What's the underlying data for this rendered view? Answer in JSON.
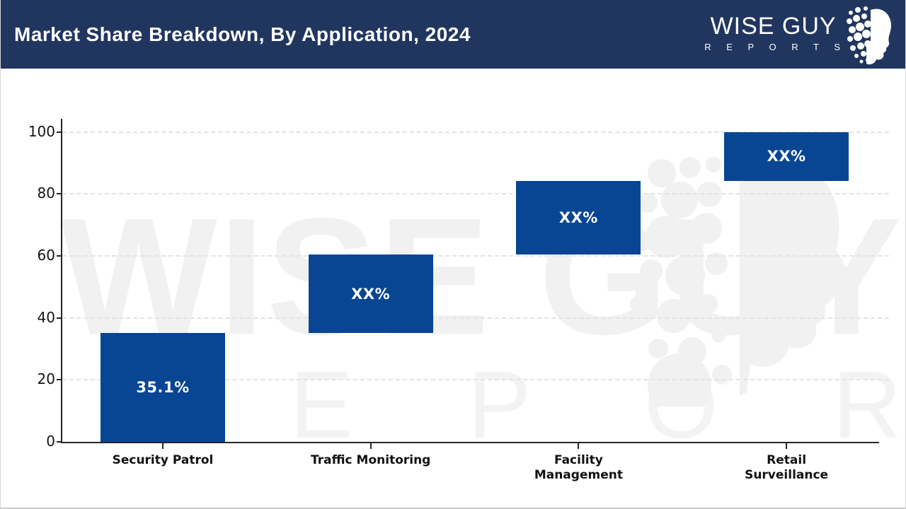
{
  "header": {
    "title": "Market Share Breakdown, By Application, 2024",
    "logo": {
      "line1": "WISE GUY",
      "line2": "R E P O R T S"
    }
  },
  "watermark": {
    "line1": "WISE GUY",
    "line2": "R E P O R T S"
  },
  "chart_data": {
    "type": "bar",
    "variant": "floating-waterfall",
    "title": "Market Share Breakdown, By Application, 2024",
    "xlabel": "",
    "ylabel": "",
    "ylim": [
      0,
      100
    ],
    "yticks": [
      0,
      20,
      40,
      60,
      80,
      100
    ],
    "grid": "horizontal-dashed",
    "legend": "none",
    "bar_color": "#084694",
    "value_label_color": "#ffffff",
    "categories": [
      "Security Patrol",
      "Traffic Monitoring",
      "Facility Management",
      "Retail Surveillance"
    ],
    "x_tick_lines": [
      [
        "Security Patrol"
      ],
      [
        "Traffic Monitoring"
      ],
      [
        "Facility",
        "Management"
      ],
      [
        "Retail",
        "Surveillance"
      ]
    ],
    "segments": [
      {
        "category": "Security Patrol",
        "start": 0,
        "end": 35.1,
        "label": "35.1%"
      },
      {
        "category": "Traffic Monitoring",
        "start": 35.1,
        "end": 60.4,
        "label": "XX%"
      },
      {
        "category": "Facility Management",
        "start": 60.4,
        "end": 84.2,
        "label": "XX%"
      },
      {
        "category": "Retail Surveillance",
        "start": 84.2,
        "end": 100,
        "label": "XX%"
      }
    ]
  }
}
